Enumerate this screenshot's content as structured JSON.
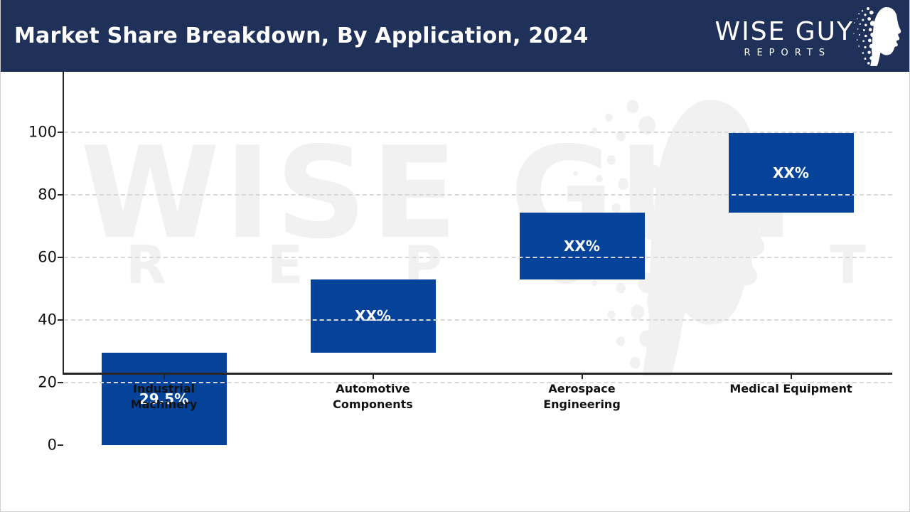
{
  "header": {
    "title": "Market Share Breakdown, By Application, 2024",
    "brand_name": "WISE GUY",
    "brand_sub": "REPORTS",
    "bg_color": "#1f3059"
  },
  "watermark": {
    "line1": "WISE GUY",
    "line2": "R E P O R T S"
  },
  "chart_data": {
    "type": "bar",
    "subtype": "floating-waterfall",
    "title": "Market Share Breakdown, By Application, 2024",
    "categories": [
      "Industrial Machinery",
      "Automotive Components",
      "Aerospace Engineering",
      "Medical Equipment"
    ],
    "category_lines": [
      [
        "Industrial",
        "Machinery"
      ],
      [
        "Automotive",
        "Components"
      ],
      [
        "Aerospace",
        "Engineering"
      ],
      [
        "Medical Equipment"
      ]
    ],
    "segments": [
      {
        "category": "Industrial Machinery",
        "start": 0,
        "end": 29.5,
        "label": "29.5%"
      },
      {
        "category": "Automotive Components",
        "start": 29.5,
        "end": 53,
        "label": "XX%"
      },
      {
        "category": "Aerospace Engineering",
        "start": 53,
        "end": 74.2,
        "label": "XX%"
      },
      {
        "category": "Medical Equipment",
        "start": 74.2,
        "end": 99.6,
        "label": "XX%"
      }
    ],
    "yticks": [
      0,
      20,
      40,
      60,
      80,
      100
    ],
    "ylim": [
      0,
      105
    ],
    "bar_color": "#05439a",
    "grid": {
      "axis": "y",
      "style": "dashed",
      "color": "#d8d8d8"
    },
    "legend": "none"
  }
}
